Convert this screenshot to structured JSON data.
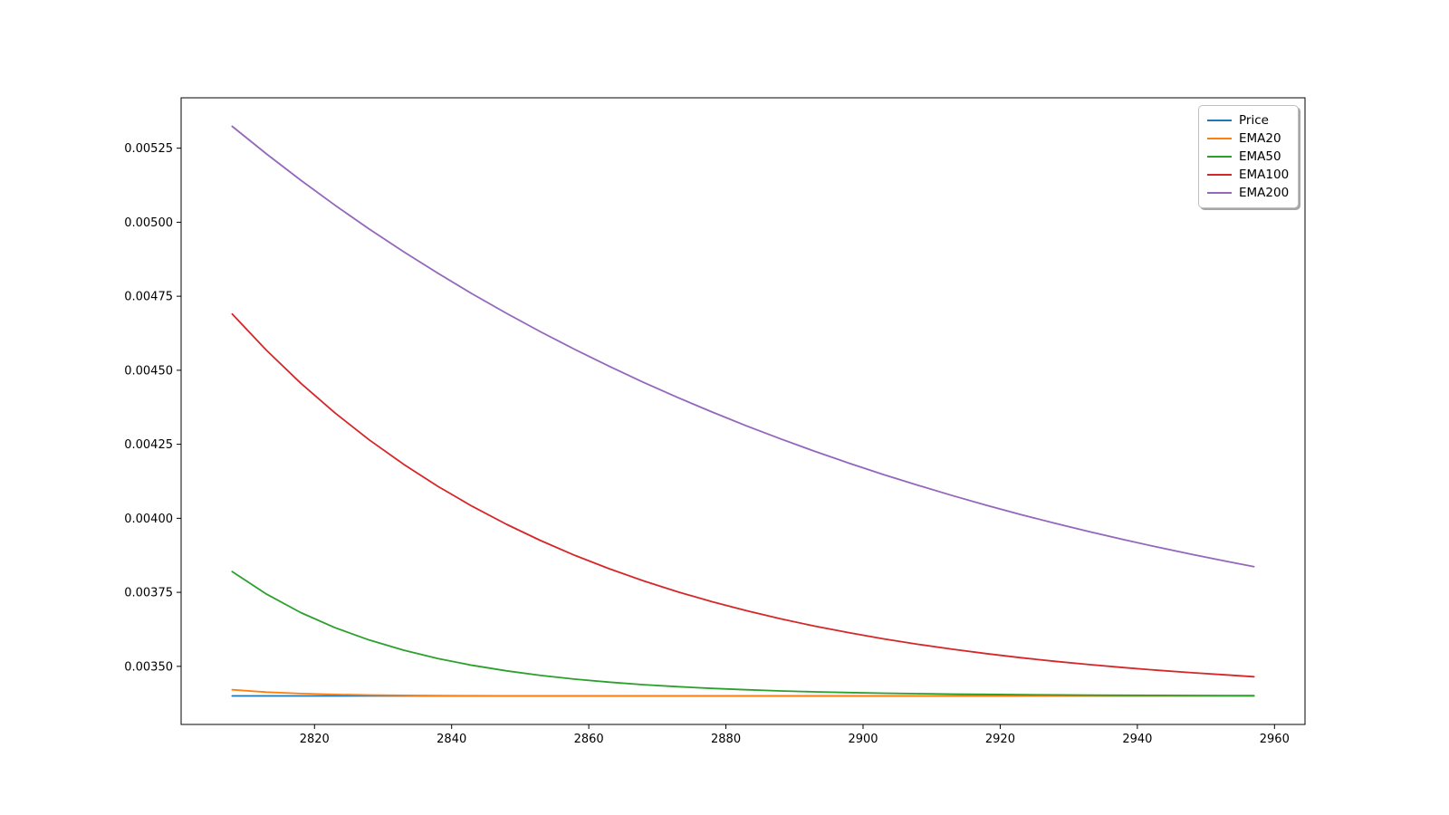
{
  "figure": {
    "background_color": "#ffffff",
    "plot_border_color": "#000000"
  },
  "chart_data": {
    "type": "line",
    "title": "",
    "xlabel": "",
    "ylabel": "",
    "grid": false,
    "legend_position": "upper right",
    "xlim": [
      2800.55,
      2964.45
    ],
    "ylim": [
      0.0033038,
      0.0054202
    ],
    "x_ticks": {
      "values": [
        2820,
        2840,
        2860,
        2880,
        2900,
        2920,
        2940,
        2960
      ],
      "labels": [
        "2820",
        "2840",
        "2860",
        "2880",
        "2900",
        "2920",
        "2940",
        "2960"
      ]
    },
    "y_ticks": {
      "values": [
        0.0035,
        0.00375,
        0.004,
        0.00425,
        0.0045,
        0.00475,
        0.005,
        0.00525
      ],
      "labels": [
        "0.00350",
        "0.00375",
        "0.00400",
        "0.00425",
        "0.00450",
        "0.00475",
        "0.00500",
        "0.00525"
      ]
    },
    "x": [
      2808,
      2813,
      2818,
      2823,
      2828,
      2833,
      2838,
      2843,
      2848,
      2853,
      2858,
      2863,
      2868,
      2873,
      2878,
      2883,
      2888,
      2893,
      2898,
      2903,
      2908,
      2913,
      2918,
      2923,
      2928,
      2933,
      2938,
      2943,
      2948,
      2953,
      2957
    ],
    "series": [
      {
        "name": "Price",
        "color": "#1f77b4",
        "values": [
          0.0034,
          0.0034,
          0.0034,
          0.0034,
          0.0034,
          0.0034,
          0.0034,
          0.0034,
          0.0034,
          0.0034,
          0.0034,
          0.0034,
          0.0034,
          0.0034,
          0.0034,
          0.0034,
          0.0034,
          0.0034,
          0.0034,
          0.0034,
          0.0034,
          0.0034,
          0.0034,
          0.0034,
          0.0034,
          0.0034,
          0.0034,
          0.0034,
          0.0034,
          0.0034,
          0.0034
        ]
      },
      {
        "name": "EMA20",
        "color": "#ff7f0e",
        "values": [
          0.003421,
          0.0034131,
          0.0034081,
          0.003405,
          0.0034031,
          0.0034019,
          0.0034012,
          0.0034008,
          0.0034005,
          0.0034003,
          0.0034002,
          0.0034001,
          0.0034001,
          0.0034001,
          0.0034,
          0.0034,
          0.0034,
          0.0034,
          0.0034,
          0.0034,
          0.0034,
          0.0034,
          0.0034,
          0.0034,
          0.0034,
          0.0034,
          0.0034,
          0.0034,
          0.0034,
          0.0034,
          0.0034
        ]
      },
      {
        "name": "EMA50",
        "color": "#2ca02c",
        "values": [
          0.00382,
          0.0037439,
          0.0036815,
          0.0036305,
          0.0035887,
          0.0035545,
          0.0035265,
          0.0035036,
          0.0034848,
          0.0034694,
          0.0034568,
          0.0034465,
          0.0034381,
          0.0034312,
          0.0034255,
          0.0034209,
          0.0034171,
          0.003414,
          0.0034115,
          0.0034094,
          0.0034077,
          0.0034063,
          0.0034052,
          0.0034042,
          0.0034035,
          0.0034028,
          0.0034023,
          0.0034019,
          0.0034016,
          0.0034013,
          0.003401
        ]
      },
      {
        "name": "EMA100",
        "color": "#d62728",
        "values": [
          0.00469,
          0.0045672,
          0.0044561,
          0.0043556,
          0.0042647,
          0.0041824,
          0.0041079,
          0.0040406,
          0.0039796,
          0.0039245,
          0.0038746,
          0.0038294,
          0.0037885,
          0.0037516,
          0.0037181,
          0.0036878,
          0.0036604,
          0.0036357,
          0.0036132,
          0.0035929,
          0.0035746,
          0.003558,
          0.0035429,
          0.0035293,
          0.003517,
          0.0035059,
          0.0034958,
          0.0034867,
          0.0034784,
          0.003471,
          0.003465
        ]
      },
      {
        "name": "EMA200",
        "color": "#9467bd",
        "values": [
          0.005324,
          0.0052306,
          0.0051418,
          0.0050573,
          0.0049768,
          0.0049003,
          0.0048275,
          0.0047582,
          0.0046923,
          0.0046296,
          0.0045699,
          0.0045131,
          0.0044591,
          0.0044077,
          0.0043588,
          0.0043123,
          0.004268,
          0.0042259,
          0.0041858,
          0.0041477,
          0.0041114,
          0.0040769,
          0.004044,
          0.0040128,
          0.0039831,
          0.0039548,
          0.0039279,
          0.0039022,
          0.0038779,
          0.0038547,
          0.003837
        ]
      }
    ]
  }
}
